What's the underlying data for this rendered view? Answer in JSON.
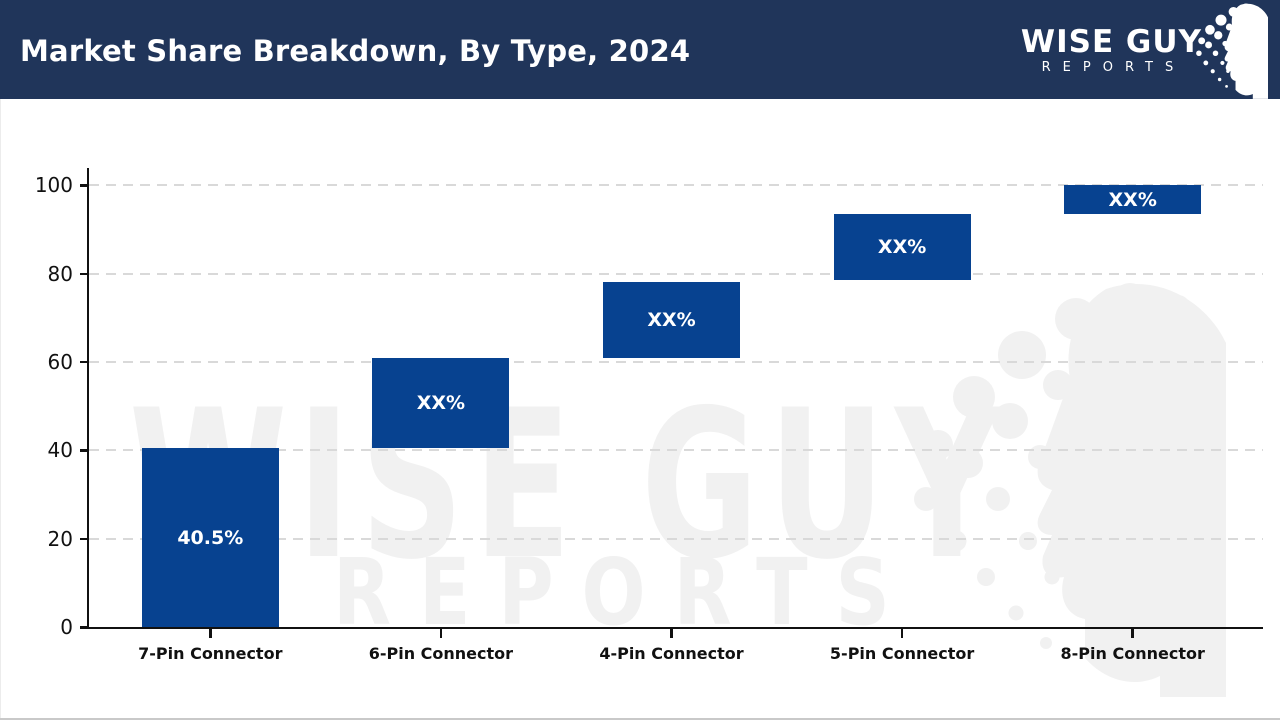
{
  "header": {
    "title": "Market Share Breakdown, By Type, 2024",
    "brand": {
      "name_top": "WISE GUY",
      "name_bottom": "REPORTS"
    }
  },
  "watermark": {
    "line1": "WISE GUY",
    "line2": "REPORTS"
  },
  "chart_data": {
    "type": "bar",
    "subtype": "waterfall-segments",
    "title": "Market Share Breakdown, By Type, 2024",
    "categories": [
      "7-Pin Connector",
      "6-Pin Connector",
      "4-Pin Connector",
      "5-Pin Connector",
      "8-Pin Connector"
    ],
    "segments": [
      {
        "category": "7-Pin Connector",
        "start": 0,
        "end": 40.5,
        "label": "40.5%"
      },
      {
        "category": "6-Pin Connector",
        "start": 40.5,
        "end": 61,
        "label": "XX%"
      },
      {
        "category": "4-Pin Connector",
        "start": 61,
        "end": 78,
        "label": "XX%"
      },
      {
        "category": "5-Pin Connector",
        "start": 78.5,
        "end": 93.5,
        "label": "XX%"
      },
      {
        "category": "8-Pin Connector",
        "start": 93.5,
        "end": 100,
        "label": "XX%"
      }
    ],
    "xlabel": "",
    "ylabel": "",
    "yticks": [
      0,
      20,
      40,
      60,
      80,
      100
    ],
    "ylim": [
      0,
      104
    ],
    "grid": "horizontal-dashed",
    "legend": "none",
    "colors": {
      "bar": "#074290",
      "bar_label": "#ffffff",
      "grid": "#d9d9d9",
      "axis": "#111111",
      "header_bg": "#20355a",
      "header_text": "#ffffff",
      "watermark": "#f1f1f1"
    }
  }
}
